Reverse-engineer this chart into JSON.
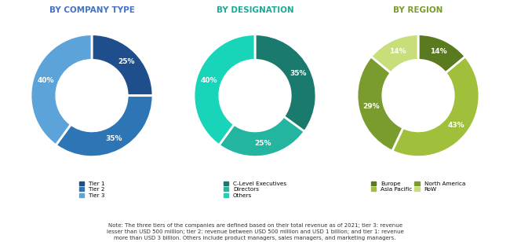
{
  "charts": [
    {
      "title": "BY COMPANY TYPE",
      "title_color": "#4472c4",
      "slices": [
        25,
        35,
        40
      ],
      "pct_labels": [
        "25%",
        "35%",
        "40%"
      ],
      "colors": [
        "#1f4e8c",
        "#2e75b6",
        "#5ba3d9"
      ],
      "legend": [
        "Tier 1",
        "Tier 2",
        "Tier 3"
      ],
      "legend_colors": [
        "#1f4e8c",
        "#2e75b6",
        "#5ba3d9"
      ],
      "startangle": 90,
      "counterclock": false,
      "ncol": 1
    },
    {
      "title": "BY DESIGNATION",
      "title_color": "#1aaa96",
      "slices": [
        35,
        25,
        40
      ],
      "pct_labels": [
        "35%",
        "25%",
        "40%"
      ],
      "colors": [
        "#1a7a6e",
        "#23b5a0",
        "#18d4b8"
      ],
      "legend": [
        "C-Level Executives",
        "Directors",
        "Others"
      ],
      "legend_colors": [
        "#1a7a6e",
        "#23b5a0",
        "#18d4b8"
      ],
      "startangle": 90,
      "counterclock": false,
      "ncol": 1
    },
    {
      "title": "BY REGION",
      "title_color": "#7a9c2e",
      "slices": [
        14,
        43,
        29,
        14
      ],
      "pct_labels": [
        "14%",
        "43%",
        "29%",
        "14%"
      ],
      "colors": [
        "#5a7a20",
        "#a0bf3a",
        "#7a9c2e",
        "#c8de7a"
      ],
      "legend": [
        "Europe",
        "Asia Pacific",
        "North America",
        "RoW"
      ],
      "legend_colors": [
        "#5a7a20",
        "#a0bf3a",
        "#7a9c2e",
        "#c8de7a"
      ],
      "startangle": 90,
      "counterclock": false,
      "ncol": 2
    }
  ],
  "note": "Note: The three tiers of the companies are defined based on their total revenue as of 2021; tier 3: revenue\nlesser than USD 500 million; tier 2: revenue between USD 500 million and USD 1 billion; and tier 1: revenue\nmore than USD 3 billion. Others include product managers, sales managers, and marketing managers.",
  "note_color": "#333333",
  "background_color": "#ffffff",
  "donut_width": 0.42
}
